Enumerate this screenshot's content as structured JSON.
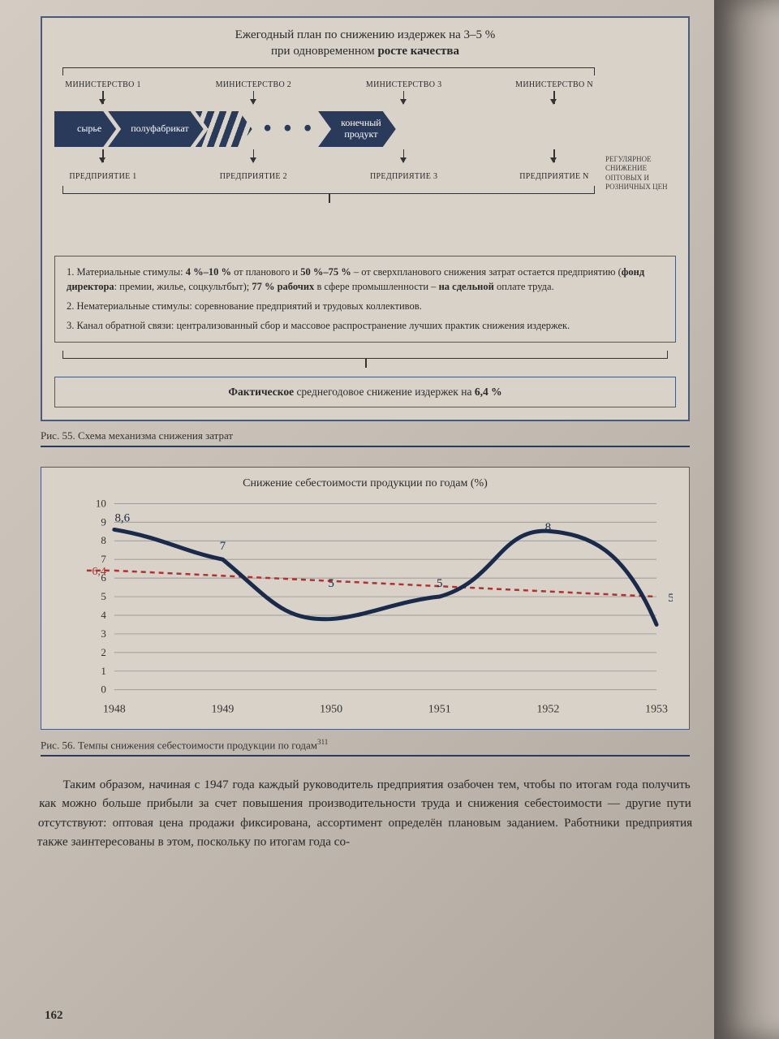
{
  "fig55": {
    "title_l1": "Ежегодный план по снижению издержек на 3–5 %",
    "title_l2": "при одновременном росте качества",
    "ministries": [
      "МИНИСТЕРСТВО 1",
      "МИНИСТЕРСТВО 2",
      "МИНИСТЕРСТВО 3",
      "МИНИСТЕРСТВО N"
    ],
    "chain": {
      "c1": "сырье",
      "c2": "полуфабрикат",
      "dots": "• • •",
      "c3_l1": "конечный",
      "c3_l2": "продукт"
    },
    "side_note": "РЕГУЛЯРНОЕ СНИЖЕНИЕ ОПТОВЫХ И РОЗНИЧНЫХ ЦЕН",
    "enterprises": [
      "ПРЕДПРИЯТИЕ 1",
      "ПРЕДПРИЯТИЕ 2",
      "ПРЕДПРИЯТИЕ 3",
      "ПРЕДПРИЯТИЕ N"
    ],
    "stim1_a": "1. Материальные стимулы: ",
    "stim1_b": "4 %–10 %",
    "stim1_c": " от планового и ",
    "stim1_d": "50 %–75 %",
    "stim1_e": " – от сверхпланового снижения затрат остается предприятию (",
    "stim1_f": "фонд директора",
    "stim1_g": ": премии, жилье, соцкультбыт); ",
    "stim1_h": "77 % рабочих",
    "stim1_i": " в сфере промышленности – ",
    "stim1_j": "на сдельной",
    "stim1_k": " оплате труда.",
    "stim2": "2. Нематериальные стимулы: соревнование предприятий и трудовых коллективов.",
    "stim3": "3. Канал обратной связи: централизованный сбор и массовое распространение лучших практик снижения издержек.",
    "result_a": "Фактическое",
    "result_b": " среднегодовое снижение издержек на ",
    "result_c": "6,4 %",
    "caption": "Рис. 55. Схема механизма снижения затрат"
  },
  "fig56": {
    "title": "Снижение себестоимости продукции по годам (%)",
    "ylim": [
      0,
      10
    ],
    "ytick_step": 1,
    "reference": {
      "label": "6,4",
      "y": 6.4
    },
    "trend_end_y": 5.0,
    "years": [
      "1948",
      "1949",
      "1950",
      "1951",
      "1952",
      "1953"
    ],
    "values": [
      8.6,
      7,
      5,
      5,
      8,
      5
    ],
    "point_labels": [
      "8,6",
      "7",
      "5",
      "5",
      "8",
      "5"
    ],
    "caption_a": "Рис. 56. Темпы снижения себестоимости продукции по годам",
    "caption_sup": "311",
    "colors": {
      "line": "#1a2a4a",
      "reference": "#b23030",
      "grid": "#888888",
      "border": "#4a5a7a",
      "bg": "#d8d2c8"
    }
  },
  "body": "Таким образом, начиная с 1947 года каждый руководитель предприятия озабочен тем, чтобы по итогам года получить как можно больше прибыли за счет повышения производительности труда и снижения себестоимости — другие пути отсутствуют: оптовая цена продажи фиксирована, ассортимент определён плановым заданием. Работники предприятия также заинтересованы в этом, поскольку по итогам года со-",
  "pagenum": "162"
}
